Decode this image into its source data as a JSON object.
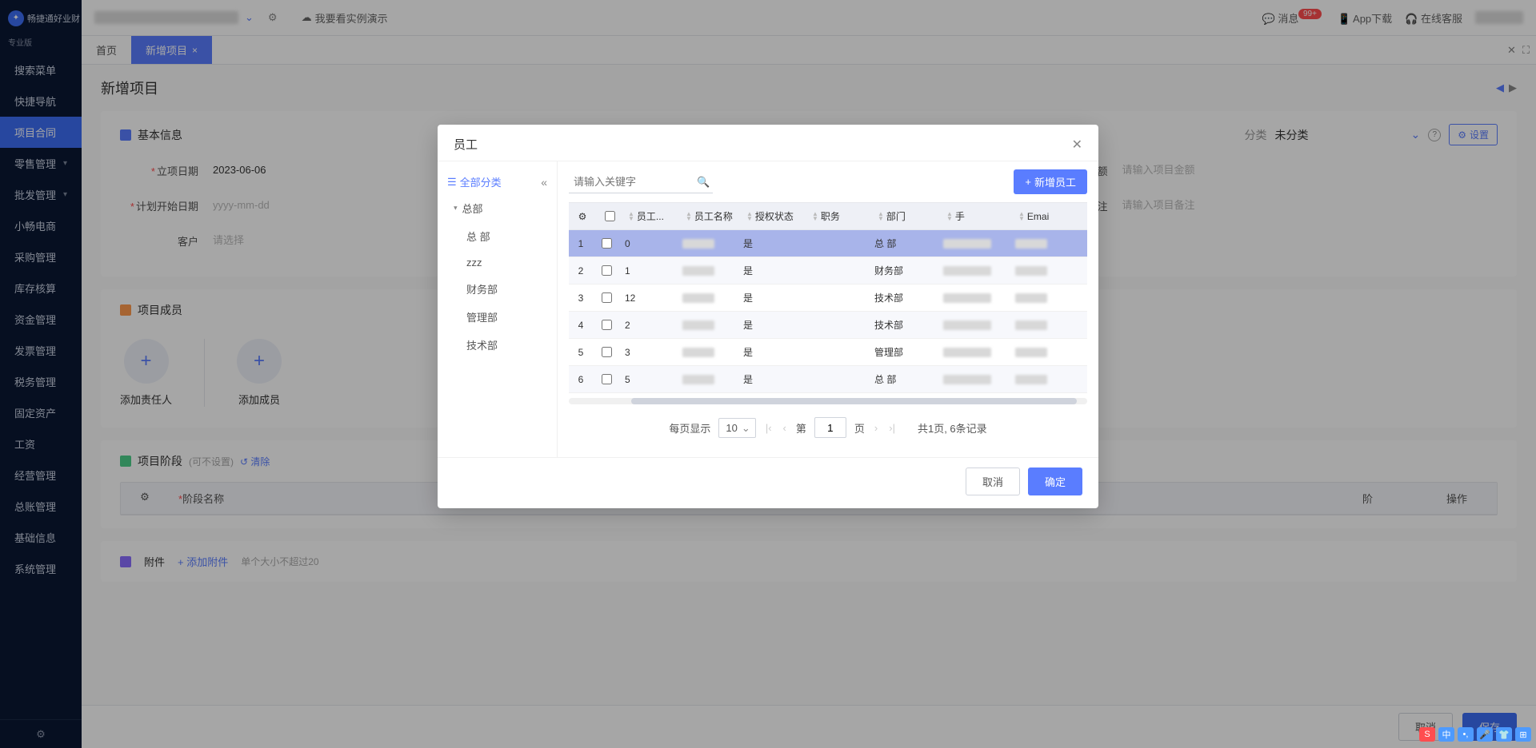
{
  "brand": {
    "name": "畅捷通好业财",
    "edition": "专业版"
  },
  "sidebar": {
    "items": [
      {
        "label": "搜索菜单",
        "expandable": false
      },
      {
        "label": "快捷导航",
        "expandable": false
      },
      {
        "label": "项目合同",
        "expandable": false,
        "active": true
      },
      {
        "label": "零售管理",
        "expandable": true
      },
      {
        "label": "批发管理",
        "expandable": true
      },
      {
        "label": "小畅电商",
        "expandable": false
      },
      {
        "label": "采购管理",
        "expandable": false
      },
      {
        "label": "库存核算",
        "expandable": false
      },
      {
        "label": "资金管理",
        "expandable": false
      },
      {
        "label": "发票管理",
        "expandable": false
      },
      {
        "label": "税务管理",
        "expandable": false
      },
      {
        "label": "固定资产",
        "expandable": false
      },
      {
        "label": "工资",
        "expandable": false
      },
      {
        "label": "经营管理",
        "expandable": false
      },
      {
        "label": "总账管理",
        "expandable": false
      },
      {
        "label": "基础信息",
        "expandable": false
      },
      {
        "label": "系统管理",
        "expandable": false
      }
    ]
  },
  "topbar": {
    "demo_link": "我要看实例演示",
    "msg_label": "消息",
    "msg_badge": "99+",
    "app_label": "App下载",
    "service_label": "在线客服"
  },
  "tabs": {
    "home": "首页",
    "active": "新增项目"
  },
  "page": {
    "title": "新增项目",
    "basic_section": "基本信息",
    "settings_btn": "设置",
    "member_section": "项目成员",
    "stage_section": "项目阶段",
    "stage_hint": "(可不设置)",
    "stage_clear": "清除",
    "attach_section": "附件",
    "attach_add": "+ 添加附件",
    "attach_hint": "单个大小不超过20",
    "fields": {
      "date_label": "立项日期",
      "date_value": "2023-06-06",
      "category_label": "分类",
      "category_value": "未分类",
      "plan_start_label": "计划开始日期",
      "plan_start_placeholder": "yyyy-mm-dd",
      "amount_label": "金额",
      "amount_placeholder": "请输入项目金额",
      "customer_label": "客户",
      "customer_placeholder": "请选择",
      "remark_label": "备注",
      "remark_placeholder": "请输入项目备注"
    },
    "members": {
      "add_owner": "添加责任人",
      "add_member": "添加成员"
    },
    "stage_table": {
      "col_name": "阶段名称",
      "col_stage": "阶",
      "col_action": "操作"
    },
    "footer": {
      "cancel": "取消",
      "save": "保存"
    }
  },
  "modal": {
    "title": "员工",
    "tree_root": "全部分类",
    "tree": [
      {
        "label": "总部",
        "parent": true
      },
      {
        "label": "总 部"
      },
      {
        "label": "zzz"
      },
      {
        "label": "财务部"
      },
      {
        "label": "管理部"
      },
      {
        "label": "技术部"
      }
    ],
    "search_placeholder": "请输入关键字",
    "new_btn": "新增员工",
    "columns": {
      "code": "员工...",
      "name": "员工名称",
      "auth": "授权状态",
      "pos": "职务",
      "dept": "部门",
      "phone": "手",
      "email": "Emai"
    },
    "rows": [
      {
        "code": "0",
        "auth": "是",
        "dept": "总 部",
        "selected": true
      },
      {
        "code": "1",
        "auth": "是",
        "dept": "财务部"
      },
      {
        "code": "12",
        "auth": "是",
        "dept": "技术部"
      },
      {
        "code": "2",
        "auth": "是",
        "dept": "技术部"
      },
      {
        "code": "3",
        "auth": "是",
        "dept": "管理部"
      },
      {
        "code": "5",
        "auth": "是",
        "dept": "总 部"
      }
    ],
    "pager": {
      "per_page_label": "每页显示",
      "per_page_value": "10",
      "page_prefix": "第",
      "page_value": "1",
      "page_suffix": "页",
      "summary": "共1页, 6条记录"
    },
    "buttons": {
      "cancel": "取消",
      "ok": "确定"
    }
  },
  "colors": {
    "primary": "#5a7dff",
    "sidebar_bg": "#0a1833",
    "badge": "#ff4d4f"
  }
}
